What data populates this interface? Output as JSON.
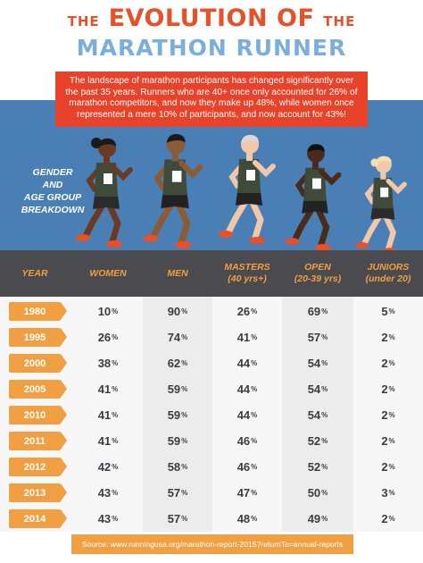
{
  "title": {
    "prefix": "the",
    "main": "EVOLUTION OF",
    "suffix": "the",
    "line2": "MARATHON RUNNER"
  },
  "intro": "The landscape of marathon participants has changed significantly over the past 35 years. Runners who are 40+ once only accounted for 26% of marathon competitors, and now they make up 48%, while women once represented a mere 10% of participants, and now account for 43%!",
  "breakdown": {
    "line1": "GENDER",
    "line2": "AND",
    "line3": "AGE GROUP",
    "line4": "BREAKDOWN"
  },
  "columns": [
    {
      "label": "YEAR",
      "sub": ""
    },
    {
      "label": "WOMEN",
      "sub": ""
    },
    {
      "label": "MEN",
      "sub": ""
    },
    {
      "label": "MASTERS",
      "sub": "(40 yrs+)"
    },
    {
      "label": "OPEN",
      "sub": "(20-39 yrs)"
    },
    {
      "label": "JUNIORS",
      "sub": "(under 20)"
    }
  ],
  "rows": [
    {
      "year": "1980",
      "women": "10",
      "men": "90",
      "masters": "26",
      "open": "69",
      "juniors": "5"
    },
    {
      "year": "1995",
      "women": "26",
      "men": "74",
      "masters": "41",
      "open": "57",
      "juniors": "2"
    },
    {
      "year": "2000",
      "women": "38",
      "men": "62",
      "masters": "44",
      "open": "54",
      "juniors": "2"
    },
    {
      "year": "2005",
      "women": "41",
      "men": "59",
      "masters": "44",
      "open": "54",
      "juniors": "2"
    },
    {
      "year": "2010",
      "women": "41",
      "men": "59",
      "masters": "44",
      "open": "54",
      "juniors": "2"
    },
    {
      "year": "2011",
      "women": "41",
      "men": "59",
      "masters": "46",
      "open": "52",
      "juniors": "2"
    },
    {
      "year": "2012",
      "women": "42",
      "men": "58",
      "masters": "46",
      "open": "52",
      "juniors": "2"
    },
    {
      "year": "2013",
      "women": "43",
      "men": "57",
      "masters": "47",
      "open": "50",
      "juniors": "3"
    },
    {
      "year": "2014",
      "women": "43",
      "men": "57",
      "masters": "48",
      "open": "49",
      "juniors": "2"
    }
  ],
  "pct_symbol": "%",
  "source": "Source: www.runningusa.org/marathon-report-2015?returnTo=annual-reports",
  "colors": {
    "orange": "#f0a043",
    "red": "#e8432a",
    "blue": "#4a7fb5",
    "light_blue": "#7aaedc",
    "dark_gray": "#4a4a4f"
  },
  "runners": [
    {
      "skin": "#6b3a22",
      "hair": "#1a1a1a",
      "top": "#3f4a3a",
      "shorts": "#2b2b2b",
      "shoes": "#e8502a"
    },
    {
      "skin": "#8b5a36",
      "hair": "#1a1a1a",
      "top": "#3f4a3a",
      "shorts": "#222222",
      "shoes": "#e8502a"
    },
    {
      "skin": "#f2c8a8",
      "hair": "#d8d8d8",
      "top": "#3f4a3a",
      "shorts": "#222222",
      "shoes": "#e8502a"
    },
    {
      "skin": "#4a2a1a",
      "hair": "#111111",
      "top": "#3f4a3a",
      "shorts": "#222222",
      "shoes": "#e8502a"
    },
    {
      "skin": "#f2c8a8",
      "hair": "#f4e0a8",
      "top": "#3f4a3a",
      "shorts": "#2b2b2b",
      "shoes": "#e8502a"
    }
  ]
}
